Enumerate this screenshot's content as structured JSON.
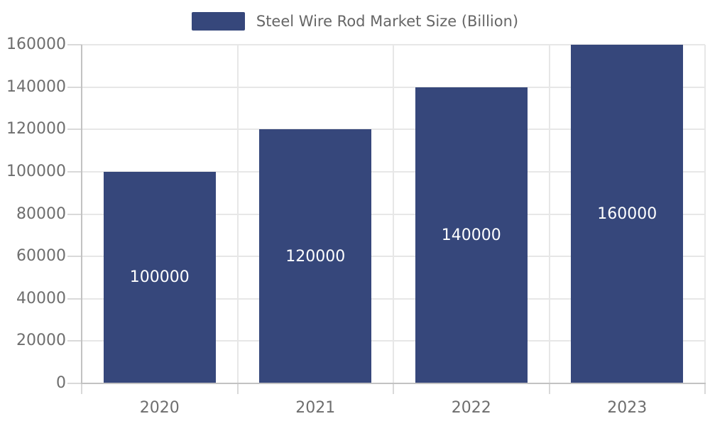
{
  "chart_data": {
    "type": "bar",
    "title": "Steel Wire Rod Market Size (Billion)",
    "categories": [
      "2020",
      "2021",
      "2022",
      "2023"
    ],
    "values": [
      100000,
      120000,
      140000,
      160000
    ],
    "bar_value_labels": [
      "100000",
      "120000",
      "140000",
      "160000"
    ],
    "ylim": [
      0,
      160000
    ],
    "ytick_step": 20000,
    "yticks": [
      0,
      20000,
      40000,
      60000,
      80000,
      100000,
      120000,
      140000,
      160000
    ],
    "ytick_labels": [
      "0",
      "20000",
      "40000",
      "60000",
      "80000",
      "100000",
      "120000",
      "140000",
      "160000"
    ],
    "xlabel": "",
    "ylabel": "",
    "grid": true,
    "legend_position": "top",
    "legend": {
      "label": "Steel Wire Rod Market Size (Billion)"
    },
    "colors": {
      "bar": "#36477b",
      "bar_label_text": "#ffffff",
      "axis_text": "#6e6e6e",
      "legend_text": "#666666",
      "gridline": "#e7e7e7",
      "axis_line": "#c2c2c2",
      "tick_mark": "#d9d9d9",
      "background": "#ffffff"
    }
  }
}
